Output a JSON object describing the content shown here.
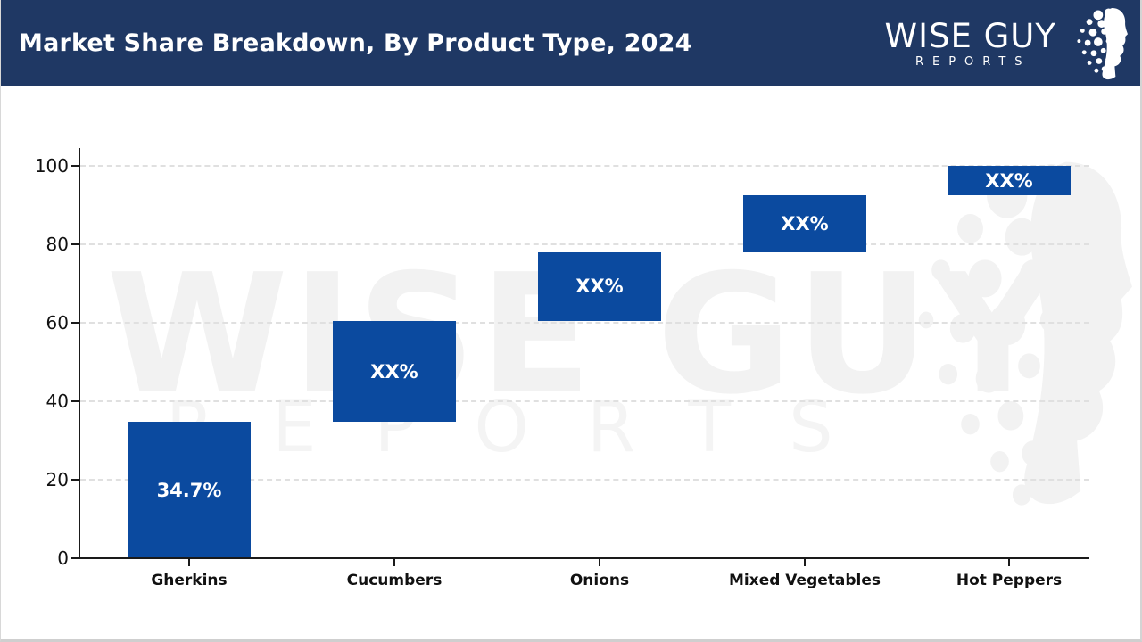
{
  "header": {
    "title": "Market Share Breakdown, By Product Type, 2024",
    "bg_color": "#1f3864",
    "logo": {
      "name": "WISE GUY",
      "subname": "REPORTS"
    }
  },
  "watermark": {
    "line1": "WISE GUY",
    "line2": "REPORTS"
  },
  "chart_data": {
    "type": "bar",
    "variant": "waterfall-floating-bars",
    "title": "Market Share Breakdown, By Product Type, 2024",
    "categories": [
      "Gherkins",
      "Cucumbers",
      "Onions",
      "Mixed Vegetables",
      "Hot Peppers"
    ],
    "segments": [
      {
        "category": "Gherkins",
        "start": 0,
        "end": 34.7,
        "label": "34.7%"
      },
      {
        "category": "Cucumbers",
        "start": 34.7,
        "end": 60.5,
        "label": "XX%"
      },
      {
        "category": "Onions",
        "start": 60.5,
        "end": 78.0,
        "label": "XX%"
      },
      {
        "category": "Mixed Vegetables",
        "start": 78.0,
        "end": 92.5,
        "label": "XX%"
      },
      {
        "category": "Hot Peppers",
        "start": 92.5,
        "end": 100.0,
        "label": "XX%"
      }
    ],
    "y_ticks": [
      0,
      20,
      40,
      60,
      80,
      100
    ],
    "ylim": [
      0,
      105
    ],
    "xlabel": "",
    "ylabel": "",
    "bar_color": "#0b4a9f",
    "bar_label_color": "#ffffff",
    "grid": {
      "axis": "y",
      "style": "dashed",
      "color": "#e0e0e0"
    },
    "legend": "none"
  }
}
